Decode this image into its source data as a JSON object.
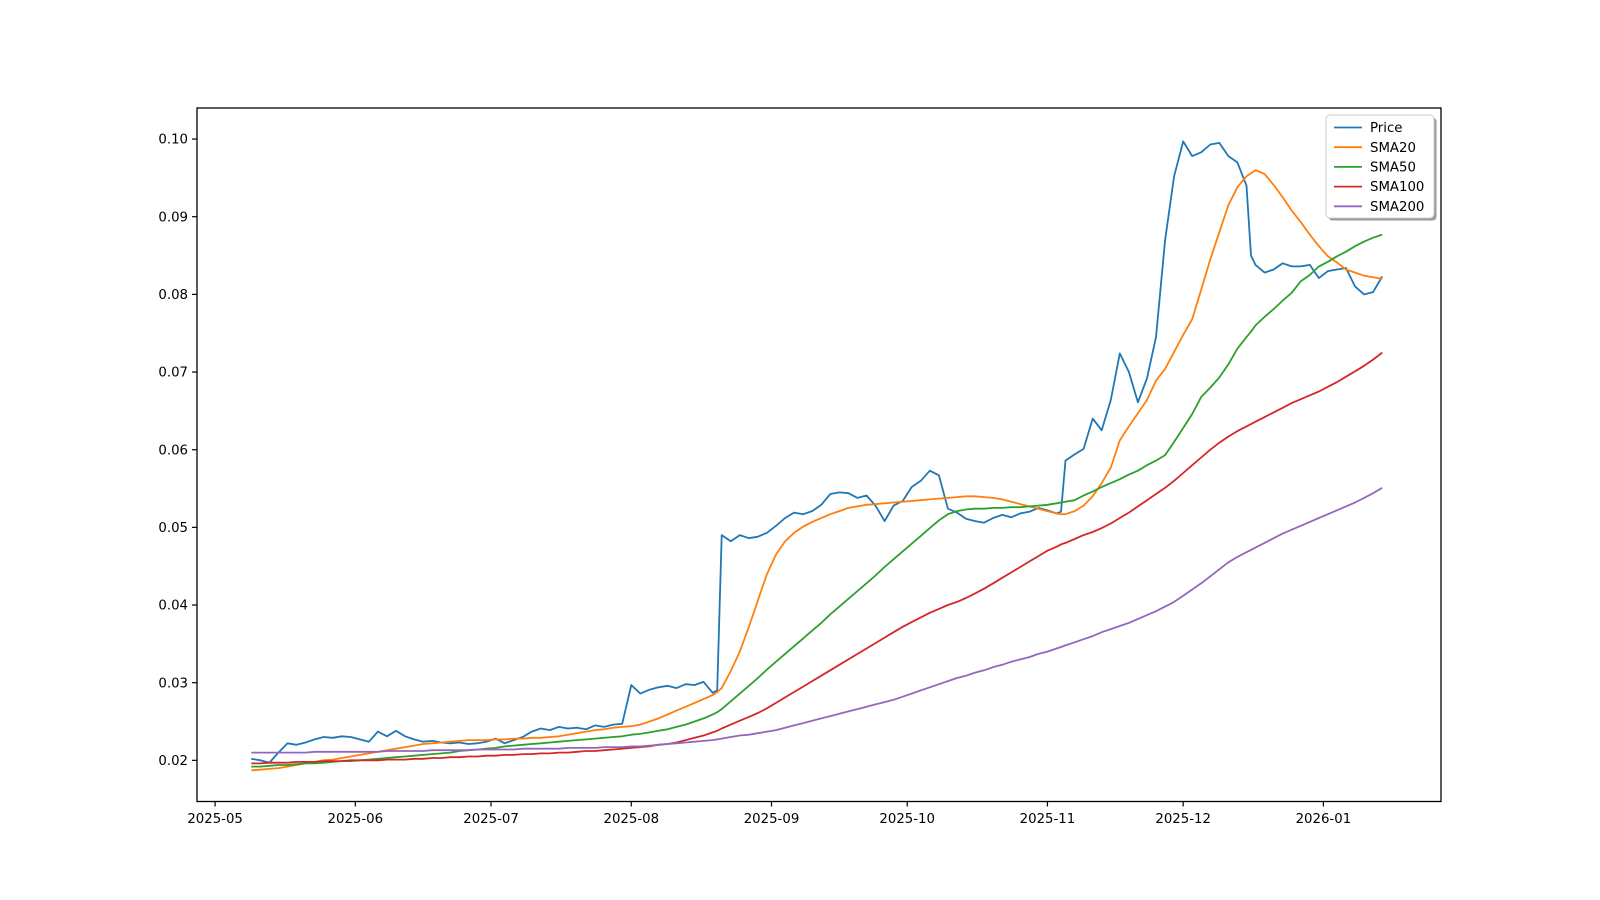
{
  "figure": {
    "background": "#ffffff"
  },
  "chart_data": {
    "type": "line",
    "title": "",
    "xlabel": "",
    "ylabel": "",
    "grid": false,
    "xlim": [
      "2025-04-27",
      "2026-01-27"
    ],
    "ylim": [
      0.0147,
      0.104
    ],
    "x_ticks": [
      {
        "value": "2025-05-01",
        "label": "2025-05"
      },
      {
        "value": "2025-06-01",
        "label": "2025-06"
      },
      {
        "value": "2025-07-01",
        "label": "2025-07"
      },
      {
        "value": "2025-08-01",
        "label": "2025-08"
      },
      {
        "value": "2025-09-01",
        "label": "2025-09"
      },
      {
        "value": "2025-10-01",
        "label": "2025-10"
      },
      {
        "value": "2025-11-01",
        "label": "2025-11"
      },
      {
        "value": "2025-12-01",
        "label": "2025-12"
      },
      {
        "value": "2026-01-01",
        "label": "2026-01"
      }
    ],
    "y_ticks": [
      {
        "value": 0.02,
        "label": "0.02"
      },
      {
        "value": 0.03,
        "label": "0.03"
      },
      {
        "value": 0.04,
        "label": "0.04"
      },
      {
        "value": 0.05,
        "label": "0.05"
      },
      {
        "value": 0.06,
        "label": "0.06"
      },
      {
        "value": 0.07,
        "label": "0.07"
      },
      {
        "value": 0.08,
        "label": "0.08"
      },
      {
        "value": 0.09,
        "label": "0.09"
      },
      {
        "value": 0.1,
        "label": "0.10"
      }
    ],
    "legend": {
      "position": "upper right",
      "border_color": "#cccccc",
      "background": "#ffffff",
      "shadow_color": "#999999"
    },
    "x": [
      "2025-05-09",
      "2025-05-11",
      "2025-05-13",
      "2025-05-15",
      "2025-05-17",
      "2025-05-19",
      "2025-05-21",
      "2025-05-23",
      "2025-05-25",
      "2025-05-27",
      "2025-05-29",
      "2025-05-31",
      "2025-06-02",
      "2025-06-04",
      "2025-06-06",
      "2025-06-08",
      "2025-06-10",
      "2025-06-12",
      "2025-06-14",
      "2025-06-16",
      "2025-06-18",
      "2025-06-20",
      "2025-06-22",
      "2025-06-24",
      "2025-06-26",
      "2025-06-28",
      "2025-06-30",
      "2025-07-02",
      "2025-07-04",
      "2025-07-06",
      "2025-07-08",
      "2025-07-10",
      "2025-07-12",
      "2025-07-14",
      "2025-07-16",
      "2025-07-18",
      "2025-07-20",
      "2025-07-22",
      "2025-07-24",
      "2025-07-26",
      "2025-07-28",
      "2025-07-30",
      "2025-08-01",
      "2025-08-03",
      "2025-08-05",
      "2025-08-07",
      "2025-08-09",
      "2025-08-11",
      "2025-08-13",
      "2025-08-15",
      "2025-08-17",
      "2025-08-19",
      "2025-08-20",
      "2025-08-21",
      "2025-08-23",
      "2025-08-25",
      "2025-08-27",
      "2025-08-29",
      "2025-08-31",
      "2025-09-02",
      "2025-09-04",
      "2025-09-06",
      "2025-09-08",
      "2025-09-10",
      "2025-09-12",
      "2025-09-14",
      "2025-09-16",
      "2025-09-18",
      "2025-09-20",
      "2025-09-22",
      "2025-09-24",
      "2025-09-26",
      "2025-09-28",
      "2025-09-30",
      "2025-10-02",
      "2025-10-04",
      "2025-10-06",
      "2025-10-08",
      "2025-10-10",
      "2025-10-12",
      "2025-10-14",
      "2025-10-16",
      "2025-10-18",
      "2025-10-20",
      "2025-10-22",
      "2025-10-24",
      "2025-10-26",
      "2025-10-28",
      "2025-10-30",
      "2025-11-01",
      "2025-11-03",
      "2025-11-04",
      "2025-11-05",
      "2025-11-07",
      "2025-11-09",
      "2025-11-11",
      "2025-11-13",
      "2025-11-15",
      "2025-11-17",
      "2025-11-19",
      "2025-11-21",
      "2025-11-23",
      "2025-11-25",
      "2025-11-27",
      "2025-11-29",
      "2025-12-01",
      "2025-12-03",
      "2025-12-05",
      "2025-12-07",
      "2025-12-09",
      "2025-12-11",
      "2025-12-13",
      "2025-12-15",
      "2025-12-16",
      "2025-12-17",
      "2025-12-19",
      "2025-12-21",
      "2025-12-23",
      "2025-12-25",
      "2025-12-27",
      "2025-12-29",
      "2025-12-31",
      "2026-01-02",
      "2026-01-04",
      "2026-01-06",
      "2026-01-08",
      "2026-01-10",
      "2026-01-12",
      "2026-01-14"
    ],
    "series": [
      {
        "name": "Price",
        "color": "#1f77b4",
        "values": [
          0.0202,
          0.02,
          0.0197,
          0.021,
          0.0222,
          0.022,
          0.0223,
          0.0227,
          0.023,
          0.0229,
          0.0231,
          0.023,
          0.0227,
          0.0224,
          0.0237,
          0.0231,
          0.0238,
          0.0231,
          0.0227,
          0.0224,
          0.0225,
          0.0223,
          0.0222,
          0.0223,
          0.0221,
          0.0222,
          0.0224,
          0.0228,
          0.0222,
          0.0226,
          0.023,
          0.0237,
          0.0241,
          0.0239,
          0.0243,
          0.0241,
          0.0242,
          0.024,
          0.0245,
          0.0243,
          0.0246,
          0.0247,
          0.0297,
          0.0286,
          0.0291,
          0.0294,
          0.0296,
          0.0293,
          0.0298,
          0.0297,
          0.0301,
          0.0287,
          0.029,
          0.049,
          0.0482,
          0.049,
          0.0486,
          0.0488,
          0.0493,
          0.0502,
          0.0512,
          0.0519,
          0.0517,
          0.0521,
          0.0529,
          0.0543,
          0.0545,
          0.0544,
          0.0538,
          0.0541,
          0.0528,
          0.0508,
          0.0528,
          0.0534,
          0.0552,
          0.056,
          0.0573,
          0.0567,
          0.0524,
          0.0519,
          0.0511,
          0.0508,
          0.0506,
          0.0512,
          0.0516,
          0.0513,
          0.0518,
          0.052,
          0.0525,
          0.0522,
          0.0518,
          0.052,
          0.0586,
          0.0594,
          0.0601,
          0.064,
          0.0625,
          0.0664,
          0.0724,
          0.07,
          0.0661,
          0.0692,
          0.0745,
          0.087,
          0.0952,
          0.0997,
          0.0978,
          0.0983,
          0.0993,
          0.0995,
          0.0978,
          0.097,
          0.094,
          0.085,
          0.0838,
          0.0828,
          0.0832,
          0.084,
          0.0836,
          0.0836,
          0.0838,
          0.0821,
          0.083,
          0.0832,
          0.0834,
          0.081,
          0.08,
          0.0803,
          0.0823
        ]
      },
      {
        "name": "SMA20",
        "color": "#ff7f0e",
        "values": [
          0.0187,
          0.0188,
          0.0189,
          0.019,
          0.0192,
          0.0194,
          0.0196,
          0.0198,
          0.02,
          0.0201,
          0.0203,
          0.0205,
          0.0207,
          0.0209,
          0.0211,
          0.0213,
          0.0215,
          0.0217,
          0.0219,
          0.0221,
          0.0222,
          0.0223,
          0.0224,
          0.0225,
          0.0226,
          0.0226,
          0.0226,
          0.0227,
          0.0227,
          0.0228,
          0.0228,
          0.0229,
          0.0229,
          0.023,
          0.0231,
          0.0233,
          0.0235,
          0.0237,
          0.0239,
          0.024,
          0.0242,
          0.0243,
          0.0244,
          0.0246,
          0.025,
          0.0254,
          0.0259,
          0.0264,
          0.0269,
          0.0274,
          0.0279,
          0.0284,
          0.0288,
          0.0293,
          0.0315,
          0.034,
          0.0372,
          0.0406,
          0.044,
          0.0465,
          0.0482,
          0.0493,
          0.0501,
          0.0507,
          0.0512,
          0.0517,
          0.0521,
          0.0525,
          0.0527,
          0.0529,
          0.053,
          0.0531,
          0.0532,
          0.0533,
          0.0534,
          0.0535,
          0.0536,
          0.0537,
          0.0538,
          0.0539,
          0.054,
          0.054,
          0.0539,
          0.0538,
          0.0536,
          0.0533,
          0.053,
          0.0527,
          0.0524,
          0.0521,
          0.0518,
          0.0517,
          0.0517,
          0.0521,
          0.0528,
          0.054,
          0.0557,
          0.0577,
          0.0612,
          0.063,
          0.0647,
          0.0664,
          0.0689,
          0.0704,
          0.0726,
          0.0748,
          0.0768,
          0.0806,
          0.0845,
          0.088,
          0.0915,
          0.0938,
          0.0952,
          0.0956,
          0.096,
          0.0955,
          0.0941,
          0.0925,
          0.0908,
          0.0893,
          0.0877,
          0.0862,
          0.0849,
          0.0841,
          0.0832,
          0.0828,
          0.0824,
          0.0822,
          0.082
        ]
      },
      {
        "name": "SMA50",
        "color": "#2ca02c",
        "values": [
          0.0192,
          0.0192,
          0.0193,
          0.0194,
          0.0194,
          0.0195,
          0.0196,
          0.0196,
          0.0197,
          0.0198,
          0.0199,
          0.0199,
          0.02,
          0.0201,
          0.0202,
          0.0203,
          0.0204,
          0.0205,
          0.0206,
          0.0207,
          0.0208,
          0.0209,
          0.021,
          0.0212,
          0.0213,
          0.0214,
          0.0215,
          0.0216,
          0.0218,
          0.0219,
          0.022,
          0.0221,
          0.0222,
          0.0223,
          0.0224,
          0.0225,
          0.0226,
          0.0227,
          0.0228,
          0.0229,
          0.023,
          0.0231,
          0.0233,
          0.0234,
          0.0236,
          0.0238,
          0.024,
          0.0243,
          0.0246,
          0.025,
          0.0254,
          0.0259,
          0.0262,
          0.0266,
          0.0276,
          0.0286,
          0.0296,
          0.0306,
          0.0317,
          0.0327,
          0.0337,
          0.0347,
          0.0357,
          0.0367,
          0.0377,
          0.0388,
          0.0398,
          0.0408,
          0.0418,
          0.0428,
          0.0438,
          0.0449,
          0.0459,
          0.0469,
          0.0479,
          0.0489,
          0.0499,
          0.0509,
          0.0517,
          0.0521,
          0.0523,
          0.0524,
          0.0524,
          0.0525,
          0.0525,
          0.0526,
          0.0526,
          0.0527,
          0.0528,
          0.0529,
          0.0531,
          0.0532,
          0.0533,
          0.0535,
          0.0541,
          0.0546,
          0.0552,
          0.0557,
          0.0562,
          0.0568,
          0.0573,
          0.058,
          0.0586,
          0.0593,
          0.061,
          0.0628,
          0.0646,
          0.0668,
          0.068,
          0.0693,
          0.071,
          0.073,
          0.0745,
          0.0752,
          0.076,
          0.0771,
          0.0781,
          0.0792,
          0.0802,
          0.0817,
          0.0825,
          0.0836,
          0.0842,
          0.0849,
          0.0855,
          0.0862,
          0.0868,
          0.0873,
          0.0877
        ]
      },
      {
        "name": "SMA100",
        "color": "#d62728",
        "values": [
          0.0196,
          0.0196,
          0.0197,
          0.0197,
          0.0197,
          0.0198,
          0.0198,
          0.0198,
          0.0199,
          0.0199,
          0.0199,
          0.02,
          0.02,
          0.02,
          0.02,
          0.0201,
          0.0201,
          0.0201,
          0.0202,
          0.0202,
          0.0203,
          0.0203,
          0.0204,
          0.0204,
          0.0205,
          0.0205,
          0.0206,
          0.0206,
          0.0207,
          0.0207,
          0.0208,
          0.0208,
          0.0209,
          0.0209,
          0.021,
          0.021,
          0.0211,
          0.0212,
          0.0212,
          0.0213,
          0.0214,
          0.0215,
          0.0216,
          0.0217,
          0.0218,
          0.022,
          0.0221,
          0.0223,
          0.0226,
          0.0229,
          0.0232,
          0.0236,
          0.0238,
          0.0241,
          0.0246,
          0.0251,
          0.0256,
          0.0261,
          0.0267,
          0.0274,
          0.0281,
          0.0288,
          0.0295,
          0.0302,
          0.0309,
          0.0316,
          0.0323,
          0.033,
          0.0337,
          0.0344,
          0.0351,
          0.0358,
          0.0365,
          0.0372,
          0.0378,
          0.0384,
          0.039,
          0.0395,
          0.04,
          0.0404,
          0.0409,
          0.0415,
          0.0421,
          0.0428,
          0.0435,
          0.0442,
          0.0449,
          0.0456,
          0.0463,
          0.047,
          0.0475,
          0.0478,
          0.048,
          0.0485,
          0.049,
          0.0494,
          0.0499,
          0.0505,
          0.0512,
          0.0519,
          0.0527,
          0.0535,
          0.0543,
          0.0551,
          0.056,
          0.057,
          0.058,
          0.059,
          0.06,
          0.0609,
          0.0617,
          0.0624,
          0.063,
          0.0633,
          0.0636,
          0.0642,
          0.0648,
          0.0654,
          0.066,
          0.0665,
          0.067,
          0.0675,
          0.0681,
          0.0687,
          0.0694,
          0.0701,
          0.0708,
          0.0716,
          0.0725
        ]
      },
      {
        "name": "SMA200",
        "color": "#9467bd",
        "values": [
          0.021,
          0.021,
          0.021,
          0.021,
          0.021,
          0.021,
          0.021,
          0.0211,
          0.0211,
          0.0211,
          0.0211,
          0.0211,
          0.0211,
          0.0211,
          0.0211,
          0.0212,
          0.0212,
          0.0212,
          0.0212,
          0.0212,
          0.0213,
          0.0213,
          0.0213,
          0.0213,
          0.0213,
          0.0214,
          0.0214,
          0.0214,
          0.0214,
          0.0214,
          0.0215,
          0.0215,
          0.0215,
          0.0215,
          0.0215,
          0.0216,
          0.0216,
          0.0216,
          0.0216,
          0.0217,
          0.0217,
          0.0217,
          0.0218,
          0.0218,
          0.0219,
          0.022,
          0.0221,
          0.0222,
          0.0223,
          0.0224,
          0.0225,
          0.0226,
          0.0227,
          0.0228,
          0.023,
          0.0232,
          0.0233,
          0.0235,
          0.0237,
          0.0239,
          0.0242,
          0.0245,
          0.0248,
          0.0251,
          0.0254,
          0.0257,
          0.026,
          0.0263,
          0.0266,
          0.0269,
          0.0272,
          0.0275,
          0.0278,
          0.0282,
          0.0286,
          0.029,
          0.0294,
          0.0298,
          0.0302,
          0.0306,
          0.0309,
          0.0313,
          0.0316,
          0.032,
          0.0323,
          0.0327,
          0.033,
          0.0333,
          0.0337,
          0.034,
          0.0344,
          0.0346,
          0.0348,
          0.0352,
          0.0356,
          0.036,
          0.0365,
          0.0369,
          0.0373,
          0.0377,
          0.0382,
          0.0387,
          0.0392,
          0.0398,
          0.0404,
          0.0412,
          0.042,
          0.0428,
          0.0437,
          0.0446,
          0.0455,
          0.0462,
          0.0468,
          0.0471,
          0.0474,
          0.048,
          0.0486,
          0.0492,
          0.0497,
          0.0502,
          0.0507,
          0.0512,
          0.0517,
          0.0522,
          0.0527,
          0.0532,
          0.0538,
          0.0544,
          0.0551
        ]
      }
    ]
  }
}
